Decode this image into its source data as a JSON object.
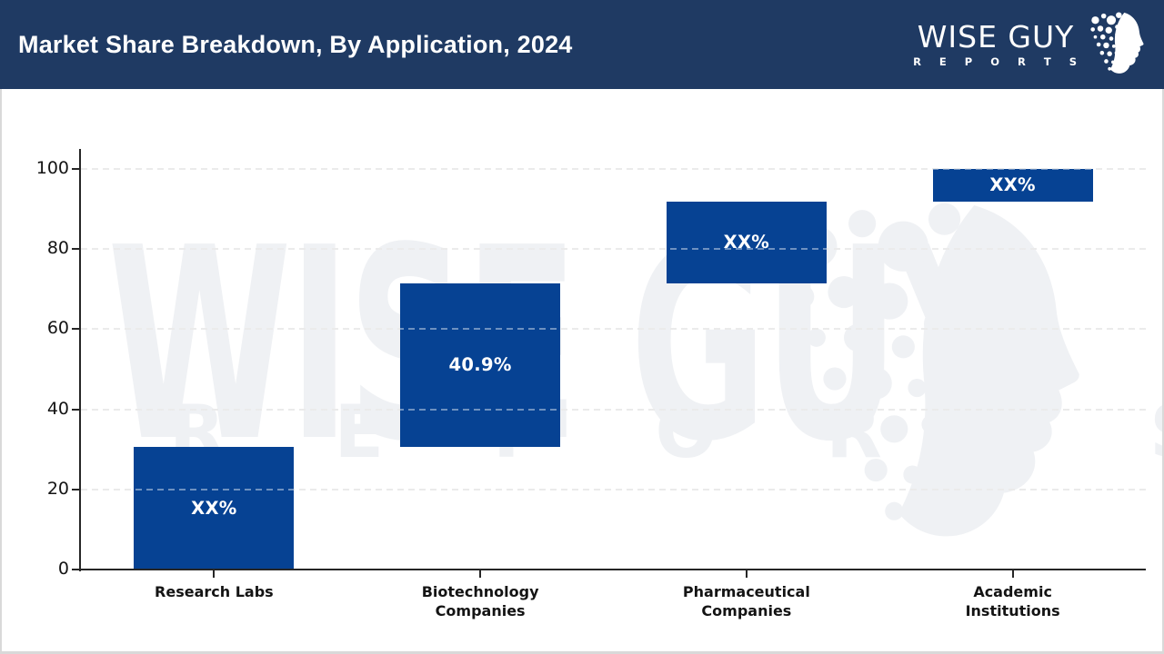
{
  "header": {
    "title": "Market Share Breakdown, By Application, 2024",
    "logo": {
      "line1": "WISE GUY",
      "line2": "R E P O R T S",
      "face_icon": "dotted-head-profile-icon"
    }
  },
  "watermark": {
    "line1": "WISE GUY",
    "line2": "R E P O R T S",
    "face_icon": "dotted-head-profile-icon"
  },
  "colors": {
    "header_bg": "#1f3a63",
    "bar": "#064293",
    "grid": "#dcdcdc",
    "axis": "#262626",
    "bar_label_text": "#ffffff",
    "watermark": "#eff1f4",
    "page_border": "#d9d9d9"
  },
  "chart_data": {
    "type": "bar",
    "variant": "waterfall",
    "title": "Market Share Breakdown, By Application, 2024",
    "categories": [
      "Research Labs",
      "Biotechnology Companies",
      "Pharmaceutical Companies",
      "Academic Institutions"
    ],
    "category_lines": [
      [
        "Research Labs"
      ],
      [
        "Biotechnology",
        "Companies"
      ],
      [
        "Pharmaceutical",
        "Companies"
      ],
      [
        "Academic",
        "Institutions"
      ]
    ],
    "segments": [
      {
        "category": "Research Labs",
        "start": 0,
        "end": 30.6,
        "label": "XX%"
      },
      {
        "category": "Biotechnology Companies",
        "start": 30.6,
        "end": 71.5,
        "value": 40.9,
        "label": "40.9%"
      },
      {
        "category": "Pharmaceutical Companies",
        "start": 71.5,
        "end": 91.9,
        "label": "XX%"
      },
      {
        "category": "Academic Institutions",
        "start": 91.9,
        "end": 100,
        "label": "XX%"
      }
    ],
    "yticks": [
      0,
      20,
      40,
      60,
      80,
      100
    ],
    "ylim": [
      0,
      105
    ],
    "xlabel": "",
    "ylabel": "",
    "grid": "dashed-horizontal",
    "legend": "none"
  }
}
